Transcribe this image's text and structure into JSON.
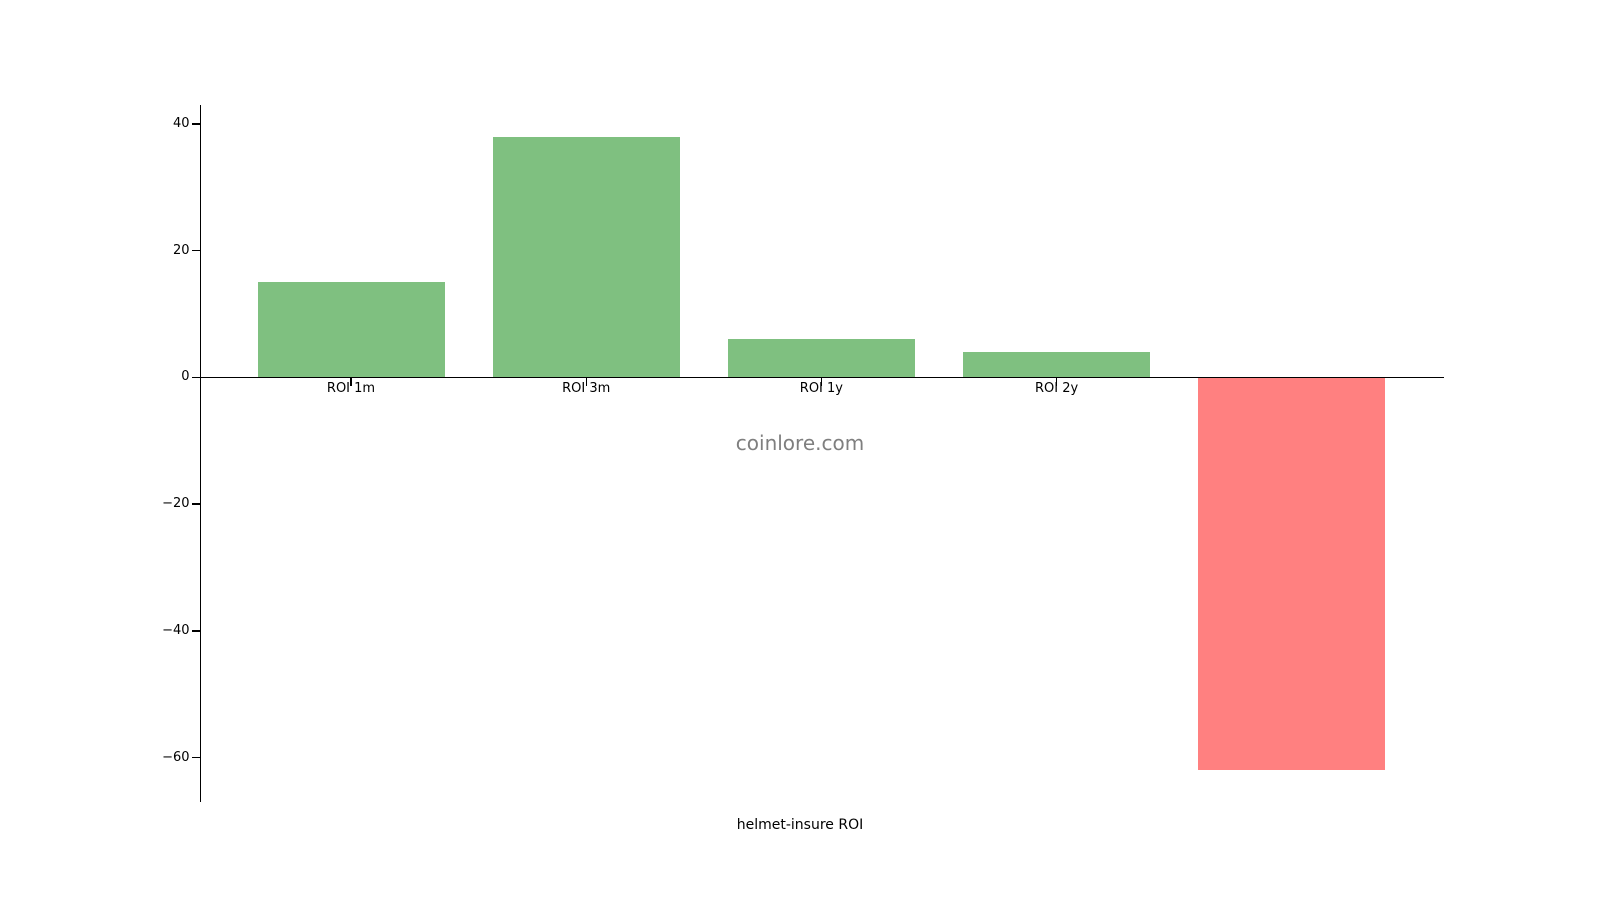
{
  "chart_data": {
    "type": "bar",
    "title": "",
    "categories": [
      "ROI 1m",
      "ROI 3m",
      "ROI 1y",
      "ROI 2y",
      ""
    ],
    "values": [
      15,
      38,
      6,
      4,
      -62
    ],
    "bar_colors": [
      "#7fc080",
      "#7fc080",
      "#7fc080",
      "#7fc080",
      "#ff8080"
    ],
    "positive_color": "#7fc080",
    "negative_color": "#ff8080",
    "xlabel": "helmet-insure ROI",
    "ylabel": "",
    "yticks": [
      40,
      20,
      0,
      -20,
      -40,
      -60
    ],
    "ytick_labels": [
      "40",
      "20",
      "0",
      "−20",
      "−40",
      "−60"
    ],
    "ylim": [
      -67,
      43
    ],
    "grid": false,
    "legend": null,
    "axis_color": "#000000",
    "watermark": "coinlore.com",
    "watermark_color": "#7f7f7f"
  }
}
